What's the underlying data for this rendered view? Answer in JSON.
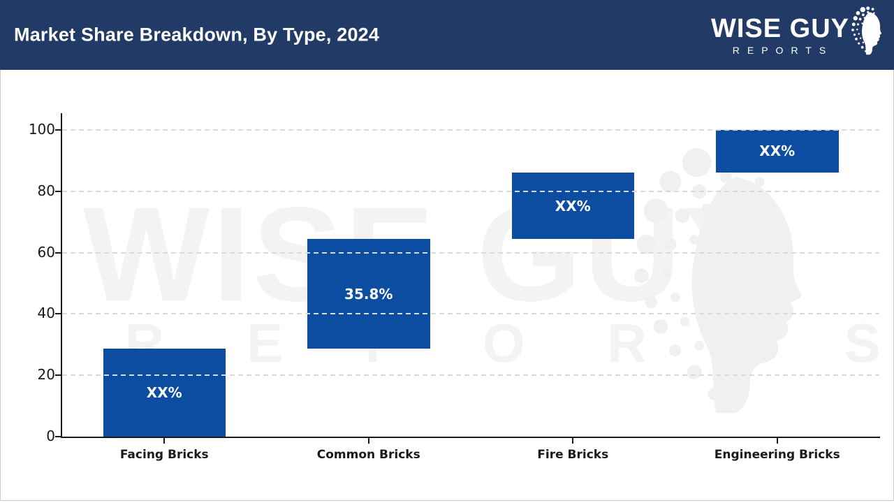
{
  "header": {
    "title": "Market Share Breakdown, By Type, 2024",
    "logo": {
      "line1": "WISE GUY",
      "line2": "REPORTS"
    }
  },
  "watermark": {
    "line1": "WISE GUY",
    "line2": "R E P O R T S"
  },
  "colors": {
    "header_bg": "#213A66",
    "bar": "#0C4DA2",
    "watermark": "#F3F3F3",
    "axis": "#1a1a1a",
    "gridline": "#DADADA"
  },
  "chart_data": {
    "type": "bar",
    "subtype": "waterfall",
    "title": "Market Share Breakdown, By Type, 2024",
    "xlabel": "",
    "ylabel": "",
    "categories": [
      "Facing Bricks",
      "Common Bricks",
      "Fire Bricks",
      "Engineering Bricks"
    ],
    "segments": [
      {
        "start": 0,
        "end": 28.6,
        "value": 28.6,
        "label": "XX%"
      },
      {
        "start": 28.6,
        "end": 64.4,
        "value": 35.8,
        "label": "35.8%"
      },
      {
        "start": 64.4,
        "end": 86.1,
        "value": 21.7,
        "label": "XX%"
      },
      {
        "start": 86.1,
        "end": 100,
        "value": 13.9,
        "label": "XX%"
      }
    ],
    "yticks": [
      0,
      20,
      40,
      60,
      80,
      100
    ],
    "ylim": [
      0,
      105
    ],
    "grid": "dashed-horizontal",
    "legend": "none",
    "bar_color": "#0C4DA2"
  }
}
